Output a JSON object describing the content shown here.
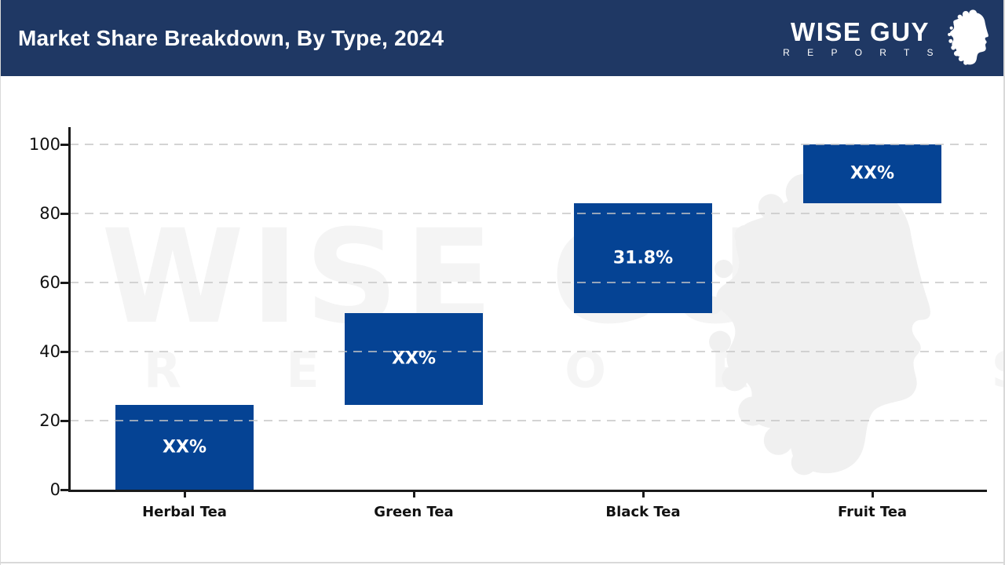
{
  "header": {
    "title": "Market Share Breakdown, By Type, 2024",
    "logo": {
      "line1": "WISE GUY",
      "line2": "R E P O R T S"
    }
  },
  "watermark": {
    "line1": "WISE GUY",
    "line2": "R E P O R T S"
  },
  "colors": {
    "header_bg": "#1f3864",
    "bar": "#054394",
    "grid": "#d9d9d9",
    "axis": "#1a1a1a",
    "bar_label": "#ffffff",
    "watermark": "#f2f2f2"
  },
  "chart_data": {
    "type": "bar",
    "subtype": "floating-waterfall",
    "title": "Market Share Breakdown, By Type, 2024",
    "xlabel": "",
    "ylabel": "",
    "categories": [
      "Herbal Tea",
      "Green Tea",
      "Black Tea",
      "Fruit Tea"
    ],
    "points": [
      {
        "category": "Herbal Tea",
        "start": 0,
        "end": 24.6,
        "label": "XX%"
      },
      {
        "category": "Green Tea",
        "start": 24.6,
        "end": 51.2,
        "label": "XX%"
      },
      {
        "category": "Black Tea",
        "start": 51.2,
        "end": 83.0,
        "label": "31.8%"
      },
      {
        "category": "Fruit Tea",
        "start": 83.0,
        "end": 100,
        "label": "XX%"
      }
    ],
    "yticks": [
      0,
      20,
      40,
      60,
      80,
      100
    ],
    "ylim": [
      0,
      105
    ],
    "grid": "horizontal-dashed",
    "legend": "none"
  }
}
